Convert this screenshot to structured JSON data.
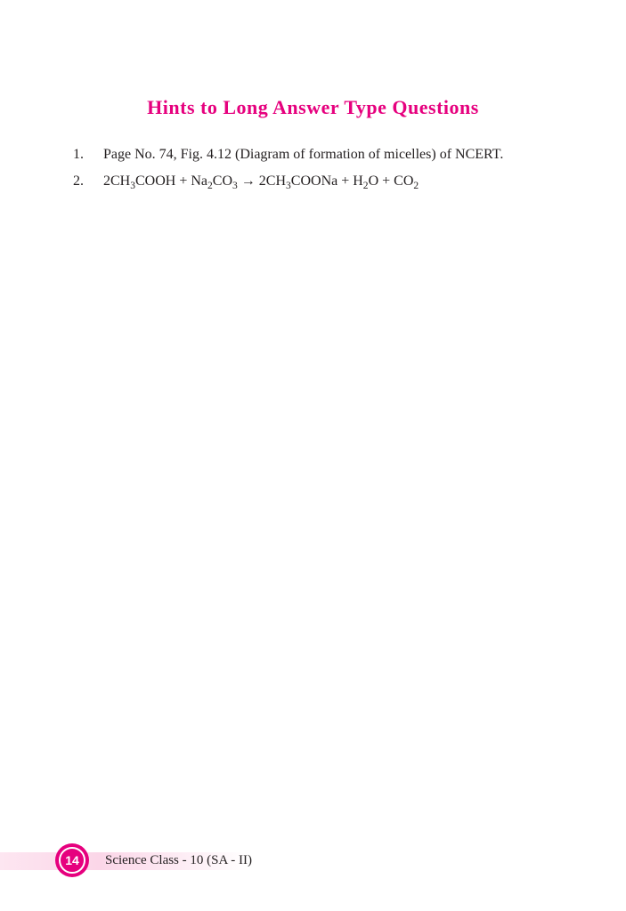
{
  "heading": "Hints to Long Answer Type Questions",
  "items": [
    {
      "num": "1.",
      "content": "Page No. 74, Fig. 4.12 (Diagram of formation of micelles) of NCERT."
    },
    {
      "num": "2.",
      "content_html": "2CH<sub>3</sub>COOH + Na<sub>2</sub>CO<sub>3</sub> <span class='arrow'>&rarr;</span> 2CH<sub>3</sub>COONa + H<sub>2</sub>O + CO<sub>2</sub>"
    }
  ],
  "footer": {
    "page_number": "14",
    "book_title": "Science Class - 10 (SA - II)"
  },
  "colors": {
    "accent": "#e6007e",
    "text": "#231f20",
    "footer_gradient_start": "#fde6f1",
    "footer_gradient_mid": "#fbd6e8",
    "background": "#ffffff"
  },
  "typography": {
    "heading_fontsize": 22,
    "body_fontsize": 16,
    "footer_fontsize": 15,
    "badge_fontsize": 14
  }
}
